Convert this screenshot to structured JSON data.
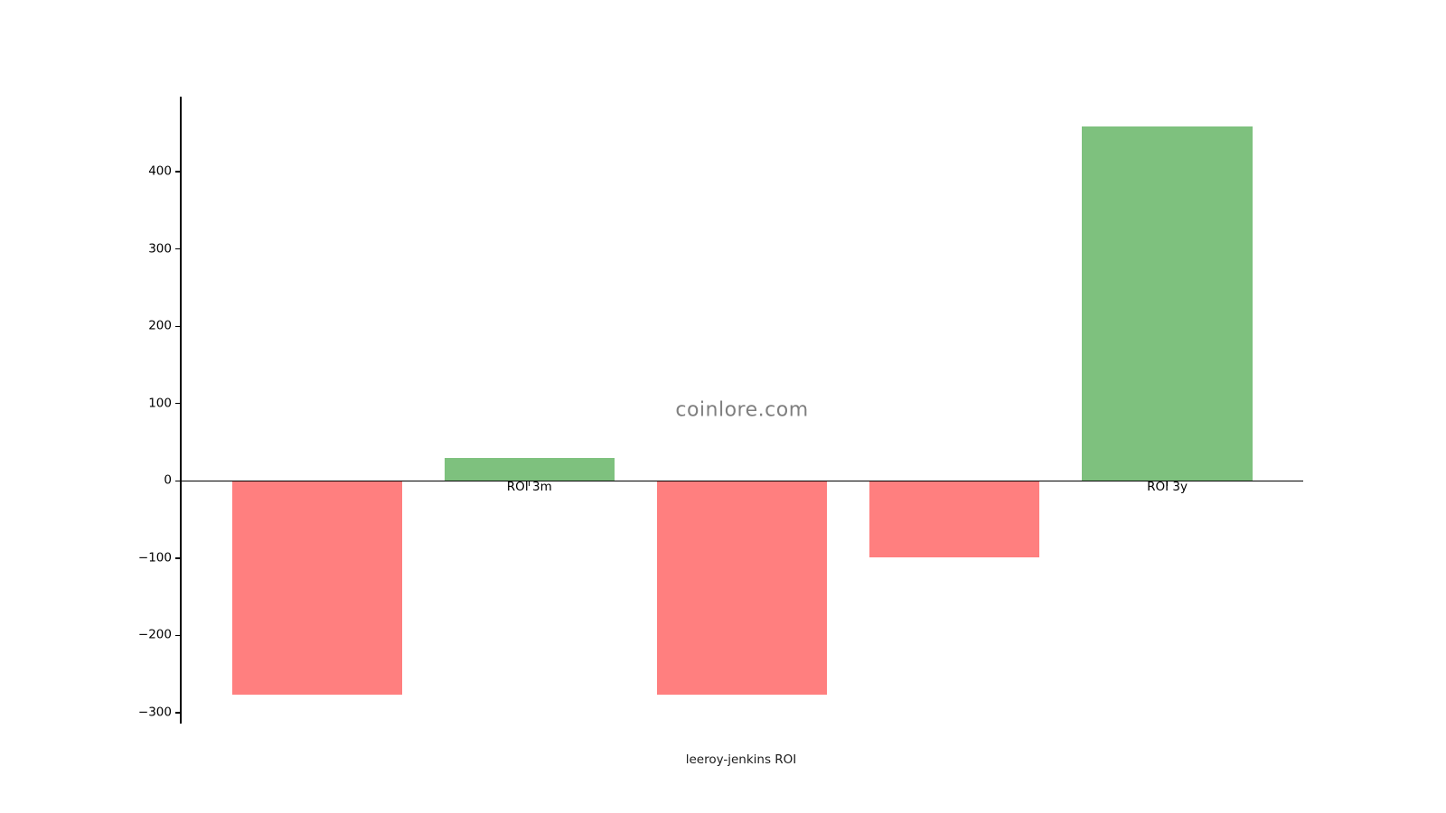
{
  "chart_data": {
    "type": "bar",
    "title": "",
    "watermark": "coinlore.com",
    "xlabel": "leeroy-jenkins ROI",
    "ylabel": "",
    "categories": [
      "",
      "ROI 3m",
      "",
      "",
      "ROI 3y"
    ],
    "values": [
      -277,
      30,
      -277,
      -99,
      459
    ],
    "yticks": [
      400,
      300,
      200,
      100,
      0,
      -100,
      -200,
      -300
    ],
    "ylim": [
      -314,
      497
    ],
    "xlim": [
      -0.64,
      4.64
    ],
    "bar_width_fraction": 0.8,
    "grid": false,
    "legend": false,
    "colors": {
      "positive": "#7ec17e",
      "negative": "#ff7f7f",
      "axis": "#000000",
      "tick_label": "#000000",
      "watermark": "#7f7f7f",
      "background": "#ffffff"
    }
  }
}
